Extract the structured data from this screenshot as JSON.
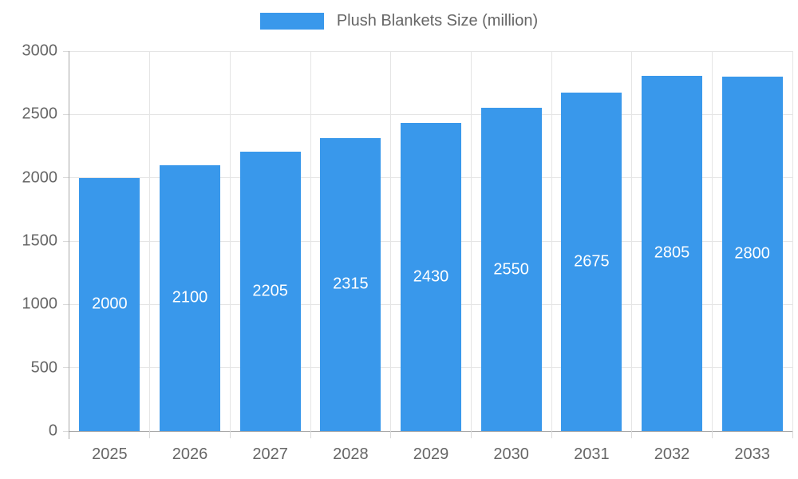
{
  "chart_data": {
    "type": "bar",
    "title": "Plush Blankets Size (million)",
    "categories": [
      "2025",
      "2026",
      "2027",
      "2028",
      "2029",
      "2030",
      "2031",
      "2032",
      "2033"
    ],
    "values": [
      2000,
      2100,
      2205,
      2315,
      2430,
      2550,
      2675,
      2805,
      2800
    ],
    "xlabel": "",
    "ylabel": "",
    "ylim": [
      0,
      3000
    ],
    "yticks": [
      0,
      500,
      1000,
      1500,
      2000,
      2500,
      3000
    ],
    "grid": true,
    "legend_position": "top",
    "bar_labels_inside": true
  },
  "legend": {
    "label": "Plush Blankets Size (million)"
  },
  "colors": {
    "bar": "#3998EB",
    "bar_label_text": "#ffffff",
    "gridline": "#e5e5e5",
    "axis_line": "#a8a8a8",
    "tick_mark": "#d9d9d9",
    "axis_text": "#666666",
    "legend_text": "#666666",
    "background": "#ffffff"
  }
}
